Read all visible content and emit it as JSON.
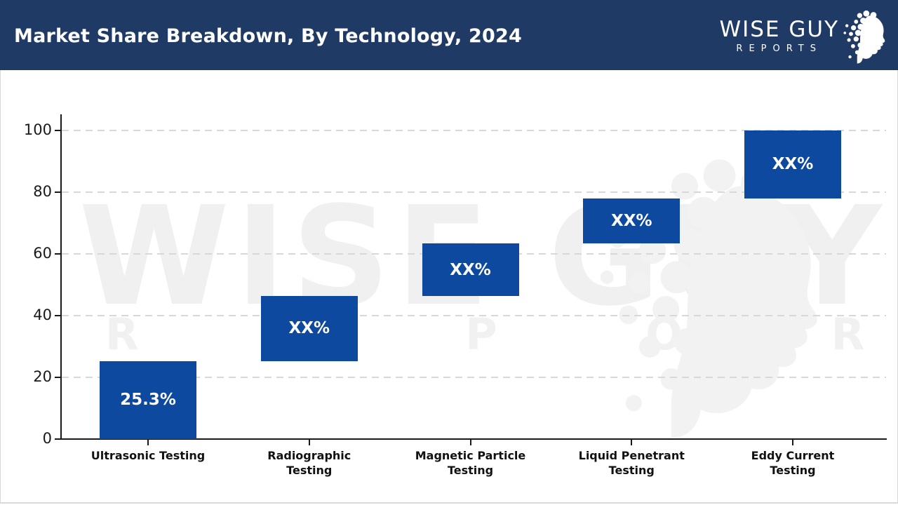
{
  "header": {
    "title": "Market Share Breakdown, By Technology, 2024",
    "logo_line1": "WISE GUY",
    "logo_line2": "REPORTS"
  },
  "watermark": {
    "line1": "WISE GUY",
    "line2": "R E P O R T S"
  },
  "chart_data": {
    "type": "bar",
    "subtype": "floating-waterfall",
    "title": "Market Share Breakdown, By Technology, 2024",
    "categories": [
      "Ultrasonic Testing",
      "Radiographic\nTesting",
      "Magnetic Particle\nTesting",
      "Liquid Penetrant\nTesting",
      "Eddy Current\nTesting"
    ],
    "bars": [
      {
        "category": "Ultrasonic Testing",
        "start": 0,
        "end": 25.3,
        "label": "25.3%"
      },
      {
        "category": "Radiographic Testing",
        "start": 25.3,
        "end": 46.3,
        "label": "XX%"
      },
      {
        "category": "Magnetic Particle Testing",
        "start": 46.3,
        "end": 63.3,
        "label": "XX%"
      },
      {
        "category": "Liquid Penetrant Testing",
        "start": 63.3,
        "end": 78,
        "label": "XX%"
      },
      {
        "category": "Eddy Current Testing",
        "start": 78,
        "end": 100,
        "label": "XX%"
      }
    ],
    "xlabel": "",
    "ylabel": "",
    "ylim": [
      0,
      105
    ],
    "yticks": [
      0,
      20,
      40,
      60,
      80,
      100
    ],
    "grid": "horizontal dashed",
    "legend": "none"
  },
  "colors": {
    "header_bg": "#203a66",
    "bar": "#0d4a9f",
    "axis": "#1a1a1a",
    "grid": "#d8d8d8",
    "watermark": "#f0f0f0",
    "label": "#ffffff"
  }
}
